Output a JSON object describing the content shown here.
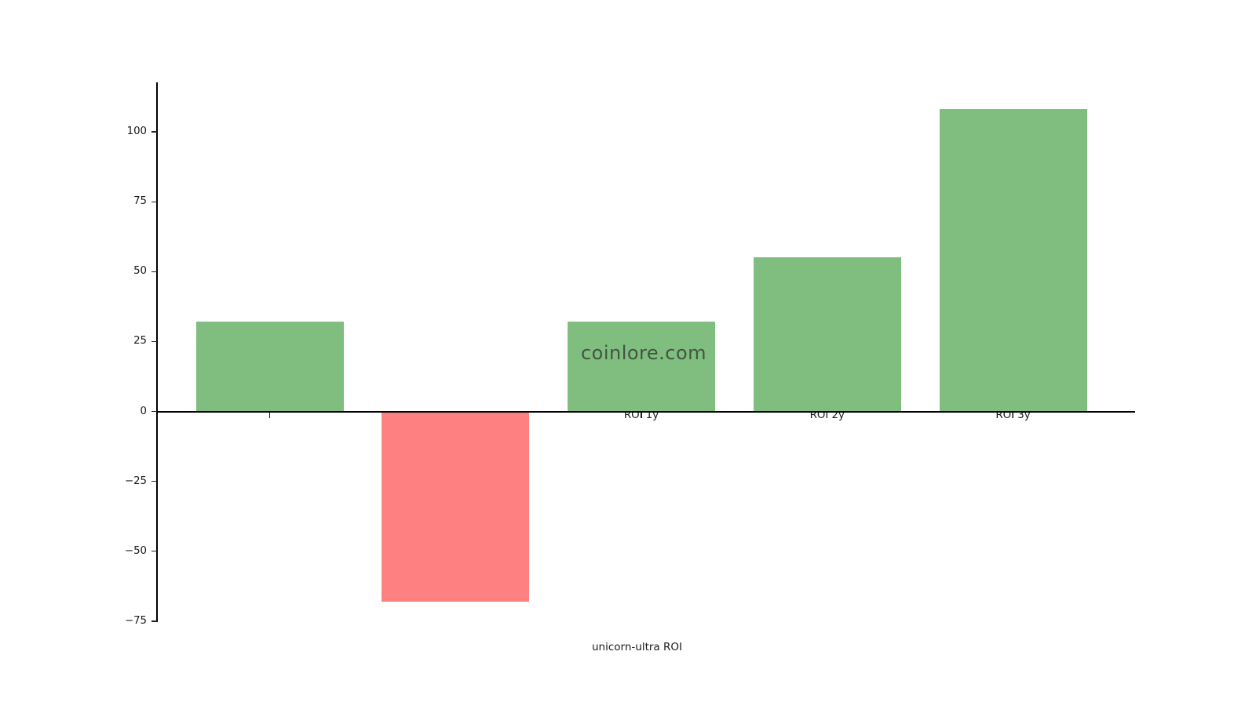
{
  "watermark": "coinlore.com",
  "chart_data": {
    "type": "bar",
    "title": "unicorn-ultra ROI",
    "xlabel": "unicorn-ultra ROI",
    "ylabel": "",
    "categories": [
      "",
      "",
      "ROI 1y",
      "ROI 2y",
      "ROI 3y"
    ],
    "values": [
      32,
      -68,
      32,
      55,
      108
    ],
    "yticks": [
      100,
      75,
      50,
      25,
      0,
      -25,
      -50,
      -75
    ],
    "ylim": [
      -78,
      118
    ],
    "grid": false,
    "legend": "none",
    "positive_color": "#7fbe7f",
    "negative_color": "#fe8080",
    "axis_color": "#000000"
  }
}
